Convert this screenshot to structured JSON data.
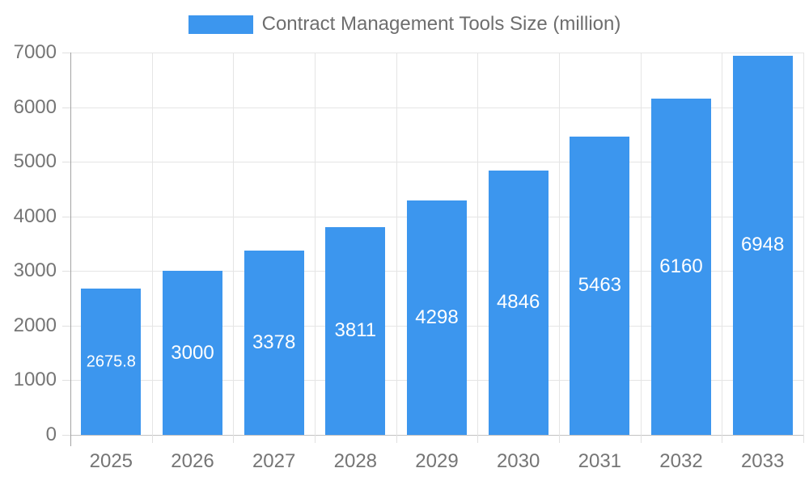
{
  "legend": {
    "label": "Contract Management Tools Size (million)",
    "swatch_color": "#3C96EE"
  },
  "colors": {
    "bar": "#3C96EE",
    "bar_label_text": "#FFFFFF",
    "axis_text": "#757575",
    "legend_text": "#6E6E6E",
    "gridline": "#E5E5E5",
    "y_axis_line": "#A3A3A3",
    "x_axis_line": "#C2C2C2",
    "background": "#FFFFFF"
  },
  "chart_data": {
    "type": "bar",
    "title": "Contract Management Tools Size (million)",
    "categories": [
      "2025",
      "2026",
      "2027",
      "2028",
      "2029",
      "2030",
      "2031",
      "2032",
      "2033"
    ],
    "values": [
      2675.8,
      3000,
      3378,
      3811,
      4298,
      4846,
      5463,
      6160,
      6948
    ],
    "bar_labels": [
      "2675.8",
      "3000",
      "3378",
      "3811",
      "4298",
      "4846",
      "5463",
      "6160",
      "6948"
    ],
    "xlabel": "",
    "ylabel": "",
    "ylim": [
      0,
      7000
    ],
    "ytick_step": 1000,
    "grid": true,
    "legend_position": "top",
    "value_label_position": "inside-center"
  }
}
